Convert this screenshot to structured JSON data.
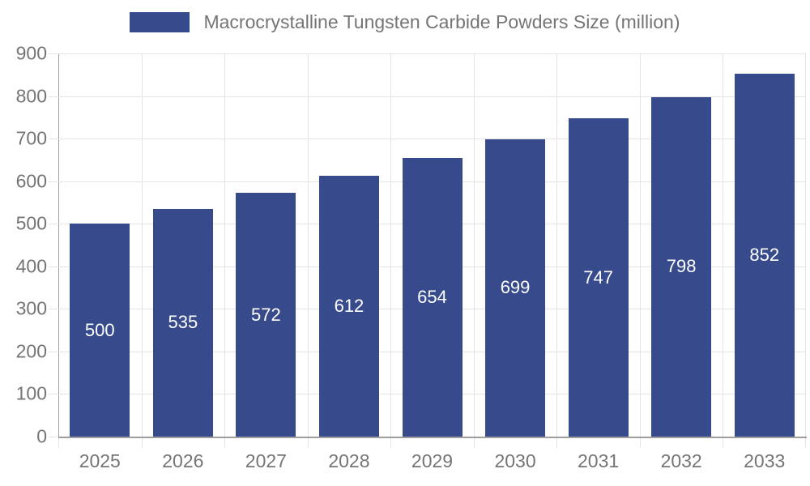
{
  "chart_data": {
    "type": "bar",
    "title": "Macrocrystalline Tungsten Carbide Powders Size (million)",
    "legend": [
      "Macrocrystalline Tungsten Carbide Powders Size (million)"
    ],
    "legend_position": "top-center",
    "categories": [
      "2025",
      "2026",
      "2027",
      "2028",
      "2029",
      "2030",
      "2031",
      "2032",
      "2033"
    ],
    "values": [
      500,
      535,
      572,
      612,
      654,
      699,
      747,
      798,
      852
    ],
    "value_labels_shown": true,
    "xlabel": "",
    "ylabel": "",
    "ylim": [
      0,
      900
    ],
    "ytick_step": 100,
    "yticks": [
      0,
      100,
      200,
      300,
      400,
      500,
      600,
      700,
      800,
      900
    ],
    "grid": true,
    "colors": {
      "bar": "#374B8C",
      "gridline": "#e4e4e4",
      "axis_line": "#9e9e9e",
      "axis_text": "#757575",
      "value_label": "#ffffff",
      "background": "#ffffff"
    }
  }
}
